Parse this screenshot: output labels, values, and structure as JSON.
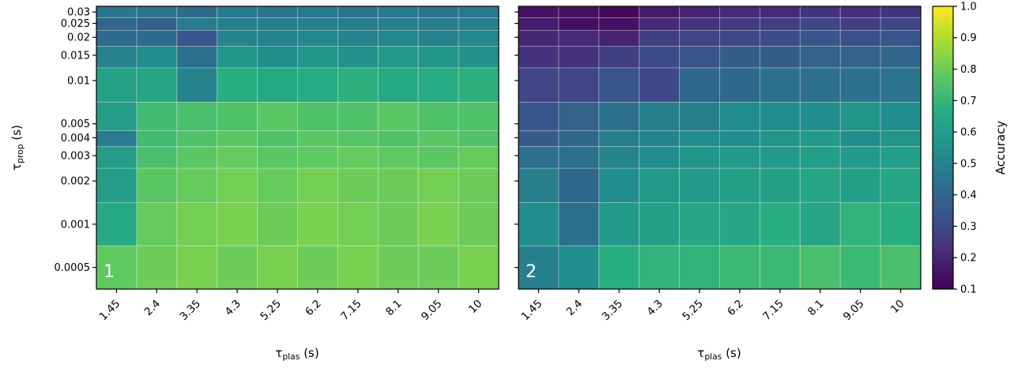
{
  "figure": {
    "y_axis": {
      "symbol": "τ",
      "sub": "prop",
      "unit": " (s)"
    },
    "x_axis": {
      "symbol": "τ",
      "sub": "plas",
      "unit": " (s)"
    },
    "colorbar": {
      "label": "Accuracy",
      "ticks": [
        "1.0",
        "0.9",
        "0.8",
        "0.7",
        "0.6",
        "0.5",
        "0.4",
        "0.3",
        "0.2",
        "0.1"
      ],
      "vmin": 0.1,
      "vmax": 1.0,
      "colormap": "viridis"
    }
  },
  "chart_data": [
    {
      "type": "heatmap",
      "panel_label": "1",
      "xlabel": "tau_plas (s)",
      "ylabel": "tau_prop (s)",
      "x_ticks": [
        "1.45",
        "2.4",
        "3.35",
        "4.3",
        "5.25",
        "6.2",
        "7.15",
        "8.1",
        "9.05",
        "10"
      ],
      "y_ticks": [
        "0.03",
        "0.025",
        "0.02",
        "0.015",
        "0.01",
        "0.005",
        "0.004",
        "0.003",
        "0.002",
        "0.001",
        "0.0005"
      ],
      "y_scale": "log",
      "vmin": 0.1,
      "vmax": 1.0,
      "colormap": "viridis",
      "values": [
        [
          0.46,
          0.46,
          0.42,
          0.47,
          0.46,
          0.47,
          0.46,
          0.47,
          0.46,
          0.47
        ],
        [
          0.4,
          0.38,
          0.48,
          0.49,
          0.48,
          0.49,
          0.48,
          0.49,
          0.48,
          0.49
        ],
        [
          0.42,
          0.42,
          0.34,
          0.51,
          0.5,
          0.52,
          0.5,
          0.52,
          0.5,
          0.52
        ],
        [
          0.5,
          0.54,
          0.44,
          0.57,
          0.55,
          0.57,
          0.56,
          0.59,
          0.57,
          0.56
        ],
        [
          0.62,
          0.64,
          0.5,
          0.67,
          0.65,
          0.66,
          0.68,
          0.65,
          0.66,
          0.68
        ],
        [
          0.6,
          0.72,
          0.74,
          0.75,
          0.77,
          0.75,
          0.75,
          0.77,
          0.75,
          0.75
        ],
        [
          0.48,
          0.72,
          0.75,
          0.77,
          0.75,
          0.77,
          0.76,
          0.75,
          0.77,
          0.75
        ],
        [
          0.6,
          0.74,
          0.77,
          0.79,
          0.77,
          0.78,
          0.79,
          0.78,
          0.77,
          0.79
        ],
        [
          0.6,
          0.77,
          0.79,
          0.81,
          0.79,
          0.81,
          0.8,
          0.8,
          0.81,
          0.8
        ],
        [
          0.65,
          0.79,
          0.81,
          0.82,
          0.8,
          0.82,
          0.81,
          0.8,
          0.82,
          0.8
        ],
        [
          0.78,
          0.8,
          0.82,
          0.8,
          0.82,
          0.8,
          0.82,
          0.8,
          0.8,
          0.82
        ]
      ]
    },
    {
      "type": "heatmap",
      "panel_label": "2",
      "xlabel": "tau_plas (s)",
      "ylabel": "tau_prop (s)",
      "x_ticks": [
        "1.45",
        "2.4",
        "3.35",
        "4.3",
        "5.25",
        "6.2",
        "7.15",
        "8.1",
        "9.05",
        "10"
      ],
      "y_ticks": [
        "0.03",
        "0.025",
        "0.02",
        "0.015",
        "0.01",
        "0.005",
        "0.004",
        "0.003",
        "0.002",
        "0.001",
        "0.0005"
      ],
      "y_scale": "log",
      "vmin": 0.1,
      "vmax": 1.0,
      "colormap": "viridis",
      "values": [
        [
          0.15,
          0.14,
          0.12,
          0.17,
          0.19,
          0.21,
          0.21,
          0.24,
          0.22,
          0.24
        ],
        [
          0.17,
          0.14,
          0.14,
          0.21,
          0.24,
          0.26,
          0.27,
          0.29,
          0.27,
          0.29
        ],
        [
          0.2,
          0.21,
          0.19,
          0.27,
          0.29,
          0.3,
          0.31,
          0.34,
          0.32,
          0.34
        ],
        [
          0.24,
          0.24,
          0.27,
          0.31,
          0.34,
          0.37,
          0.37,
          0.39,
          0.39,
          0.4
        ],
        [
          0.29,
          0.29,
          0.34,
          0.3,
          0.41,
          0.41,
          0.44,
          0.44,
          0.44,
          0.45
        ],
        [
          0.34,
          0.39,
          0.44,
          0.49,
          0.49,
          0.54,
          0.54,
          0.54,
          0.57,
          0.54
        ],
        [
          0.37,
          0.41,
          0.49,
          0.51,
          0.54,
          0.54,
          0.57,
          0.59,
          0.54,
          0.57
        ],
        [
          0.44,
          0.44,
          0.51,
          0.54,
          0.57,
          0.59,
          0.59,
          0.61,
          0.59,
          0.61
        ],
        [
          0.49,
          0.41,
          0.54,
          0.59,
          0.59,
          0.61,
          0.61,
          0.64,
          0.61,
          0.64
        ],
        [
          0.54,
          0.44,
          0.59,
          0.61,
          0.64,
          0.64,
          0.67,
          0.64,
          0.69,
          0.67
        ],
        [
          0.49,
          0.54,
          0.67,
          0.69,
          0.69,
          0.71,
          0.71,
          0.74,
          0.71,
          0.74
        ]
      ]
    }
  ]
}
